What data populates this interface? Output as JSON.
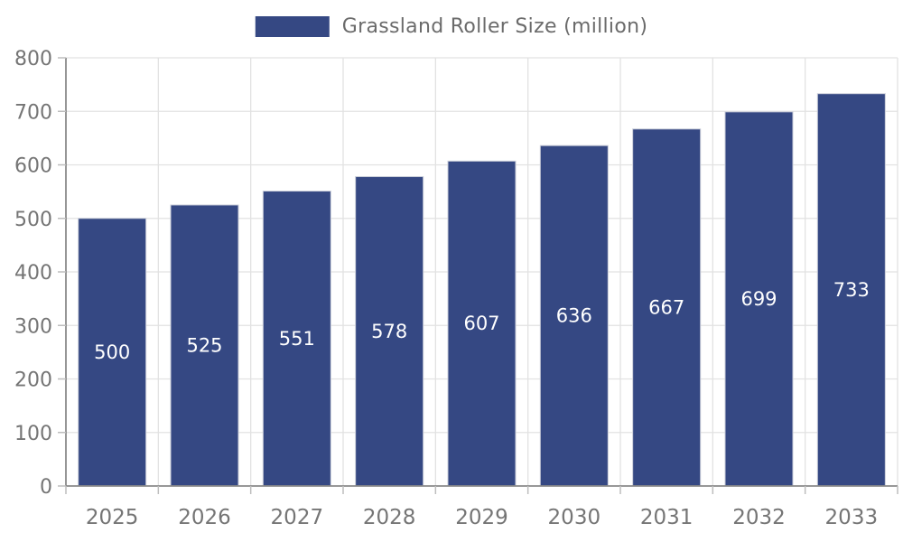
{
  "chart_data": {
    "type": "bar",
    "title": "Grassland Roller Size (million)",
    "categories": [
      "2025",
      "2026",
      "2027",
      "2028",
      "2029",
      "2030",
      "2031",
      "2032",
      "2033"
    ],
    "values": [
      500,
      525,
      551,
      578,
      607,
      636,
      667,
      699,
      733
    ],
    "xlabel": "",
    "ylabel": "",
    "ylim": [
      0,
      800
    ],
    "yticks": [
      0,
      100,
      200,
      300,
      400,
      500,
      600,
      700,
      800
    ],
    "grid": true,
    "legend_position": "top-center",
    "bar_color": "#354883",
    "bar_edge_color": "#c9cdd9",
    "value_label_color": "#ffffff",
    "grid_color": "#e2e2e2",
    "axis_color": "#8a8a8a",
    "tick_color": "#bdbdbd",
    "tick_label_color": "#757575",
    "legend_text_color": "#6b6b6b"
  }
}
